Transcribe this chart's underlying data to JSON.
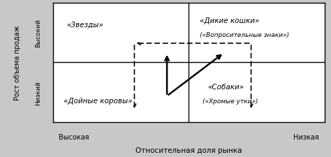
{
  "title_x": "Относительная доля рынка",
  "ylabel": "Рост объема продаж",
  "label_vysok_y": "Высокий",
  "label_nizk_y": "Низкий",
  "label_vysok_x": "Высокая",
  "label_nizk_x": "Низкая",
  "q1_text": "«Звезды»",
  "q2_text1": "«Дикие кошки»",
  "q2_text2": "(«Вопросительные знаки»)",
  "q3_text": "«Дойные коровы»",
  "q4_text1": "«Собаки»",
  "q4_text2": "(«Хромые утки»)",
  "outer_bg": "#c8c8c8",
  "plot_bg": "#ffffff",
  "text_color": "#000000",
  "arrow_dashed_color": "#000000",
  "arrow_solid_color": "#000000"
}
